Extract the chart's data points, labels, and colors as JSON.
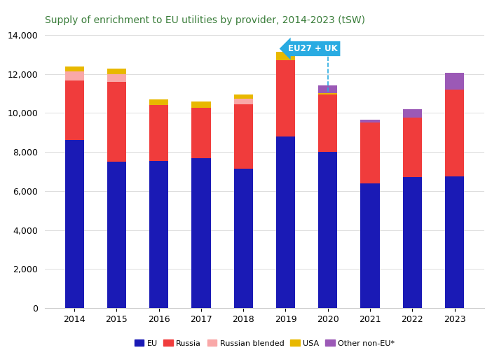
{
  "title": "Supply of enrichment to EU utilities by provider, 2014-2023 (tSW)",
  "years": [
    2014,
    2015,
    2016,
    2017,
    2018,
    2019,
    2020,
    2021,
    2022,
    2023
  ],
  "eu": [
    8600,
    7500,
    7550,
    7700,
    7150,
    8800,
    8000,
    6400,
    6700,
    6750
  ],
  "russia": [
    3050,
    4100,
    2850,
    2550,
    3300,
    3900,
    2950,
    3100,
    3050,
    4450
  ],
  "russian_blended": [
    480,
    400,
    0,
    0,
    280,
    0,
    0,
    0,
    0,
    0
  ],
  "usa": [
    250,
    280,
    280,
    330,
    230,
    430,
    80,
    0,
    0,
    0
  ],
  "other_non_eu": [
    0,
    0,
    0,
    0,
    0,
    0,
    380,
    150,
    430,
    870
  ],
  "colors": {
    "eu": "#1a1ab5",
    "russia": "#f03c3c",
    "russian_blended": "#f9a8a8",
    "usa": "#e8b800",
    "other_non_eu": "#9b59b6"
  },
  "legend_labels": [
    "EU",
    "Russia",
    "Russian blended",
    "USA",
    "Other non-EU*"
  ],
  "ylim": [
    0,
    14000
  ],
  "yticks": [
    0,
    2000,
    4000,
    6000,
    8000,
    10000,
    12000,
    14000
  ],
  "annotation_text": "EU27 + UK",
  "background_color": "#ffffff",
  "title_color": "#3a7d3a",
  "arrow_color": "#29abe2"
}
